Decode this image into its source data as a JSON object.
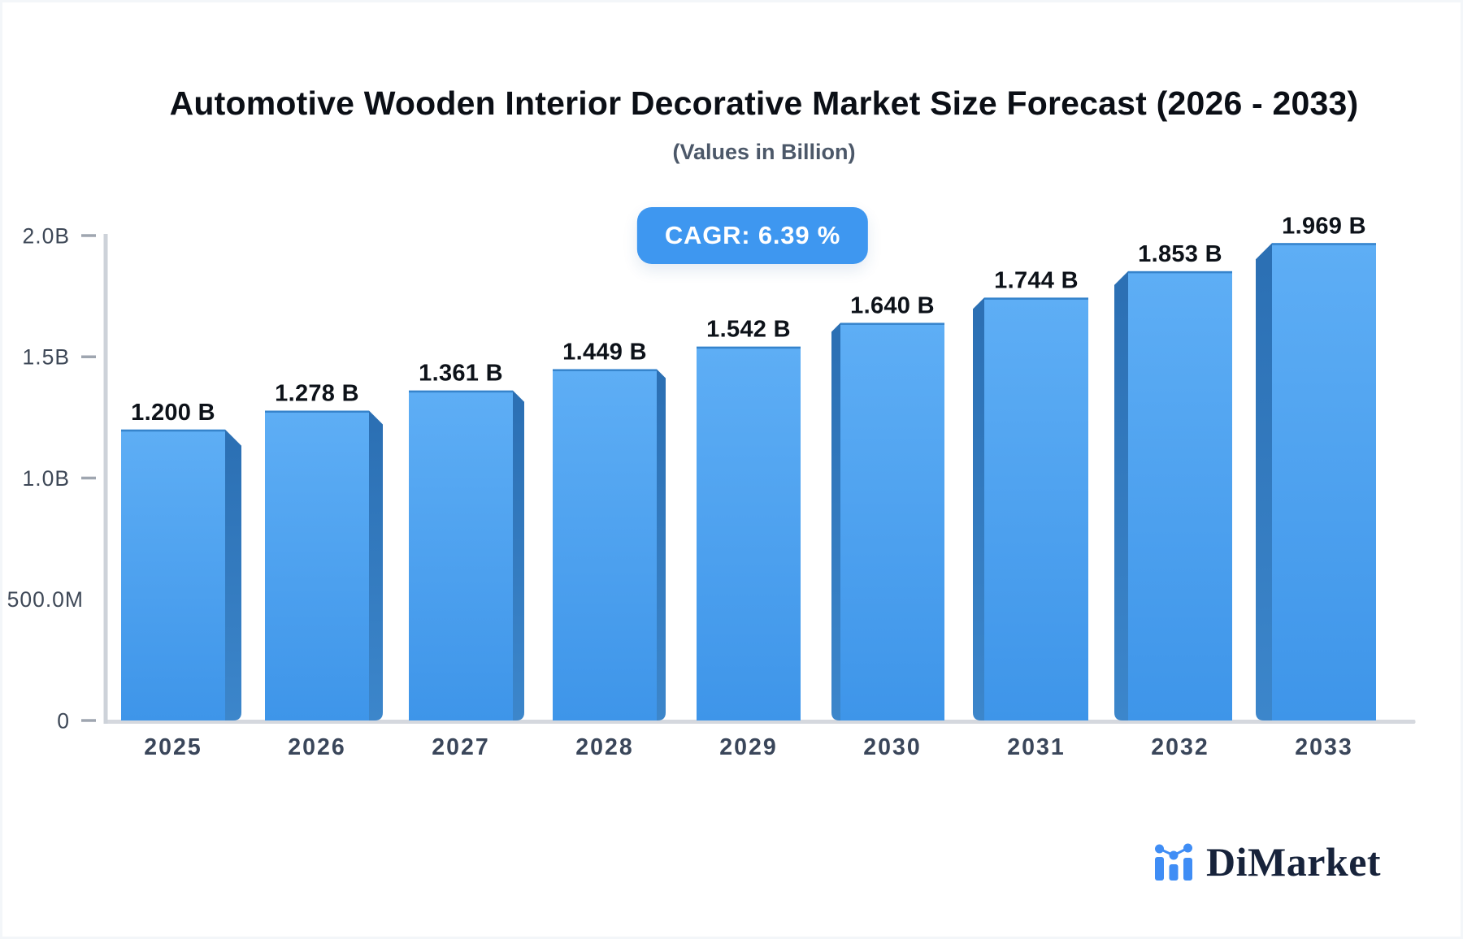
{
  "header": {
    "title": "Automotive Wooden Interior Decorative Market Size Forecast (2026 - 2033)",
    "subtitle": "(Values in Billion)",
    "cagr_label": "CAGR: 6.39 %"
  },
  "footer": {
    "brand": "DiMarket",
    "logo_icon": "mini-bar-chart-icon"
  },
  "colors": {
    "bar_face_top": "#5EAEF5",
    "bar_face_bottom": "#3E95E9",
    "bar_side_top": "#2B6FB3",
    "bar_side_bottom": "#3C86CB",
    "bar_top_edge": "#2F7CC4",
    "badge_bg": "#3E97F0",
    "badge_text": "#FFFFFF",
    "axis_line": "#CDD2D9",
    "baseline": "#D5D8DE",
    "tick_dash": "#9FA6B0",
    "axis_label": "#3E4857",
    "year_label": "#3A465A",
    "value_label": "#0D1219",
    "logo_blue": "#3F8DF5",
    "logo_text": "#17233B"
  },
  "chart_data": {
    "type": "bar",
    "title": "Automotive Wooden Interior Decorative Market Size Forecast (2026 - 2033)",
    "subtitle": "(Values in Billion)",
    "categories": [
      "2025",
      "2026",
      "2027",
      "2028",
      "2029",
      "2030",
      "2031",
      "2032",
      "2033"
    ],
    "values": [
      1.2,
      1.278,
      1.361,
      1.449,
      1.542,
      1.64,
      1.744,
      1.853,
      1.969
    ],
    "value_labels": [
      "1.200 B",
      "1.278 B",
      "1.361 B",
      "1.449 B",
      "1.542 B",
      "1.640 B",
      "1.744 B",
      "1.853 B",
      "1.969 B"
    ],
    "cagr_percent": 6.39,
    "y_ticks": [
      {
        "label": "2.0B",
        "value": 2.0,
        "dash": true
      },
      {
        "label": "1.5B",
        "value": 1.5,
        "dash": true
      },
      {
        "label": "1.0B",
        "value": 1.0,
        "dash": true
      },
      {
        "label": "500.0M",
        "value": 0.5,
        "dash": false
      },
      {
        "label": "0",
        "value": 0,
        "dash": true
      }
    ],
    "ylim": [
      0,
      2.0
    ],
    "xlabel": "",
    "ylabel": "",
    "grid": false,
    "legend": false,
    "style_3d": "pseudo-3d bars; shaded side faces angle toward the center bar"
  }
}
